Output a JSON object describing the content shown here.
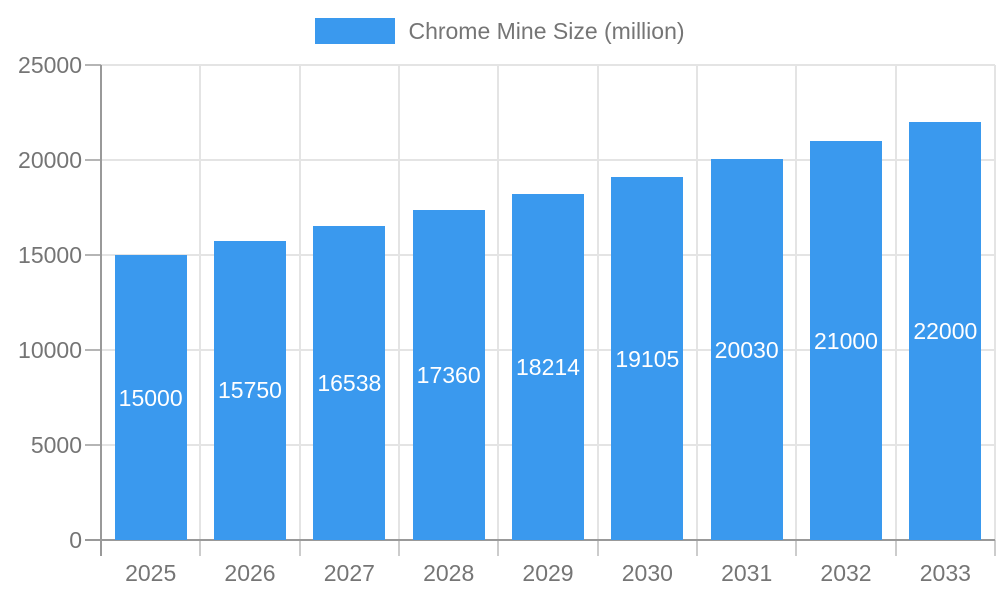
{
  "chart_data": {
    "type": "bar",
    "title": "Chrome Mine Size (million)",
    "legend": {
      "position": "top",
      "entries": [
        "Chrome Mine Size (million)"
      ]
    },
    "categories": [
      "2025",
      "2026",
      "2027",
      "2028",
      "2029",
      "2030",
      "2031",
      "2032",
      "2033"
    ],
    "values": [
      15000,
      15750,
      16538,
      17360,
      18214,
      19105,
      20030,
      21000,
      22000
    ],
    "value_labels": [
      "15000",
      "15750",
      "16538",
      "17360",
      "18214",
      "19105",
      "20030",
      "21000",
      "22000"
    ],
    "y_ticks": [
      "0",
      "5000",
      "10000",
      "15000",
      "20000",
      "25000"
    ],
    "y_tick_values": [
      0,
      5000,
      10000,
      15000,
      20000,
      25000
    ],
    "ylim": [
      0,
      25000
    ],
    "xlabel": "",
    "ylabel": "",
    "grid": "on",
    "colors": {
      "bar": "#3A99EE",
      "value_label_text": "#ffffff",
      "axis_text": "#757575",
      "axis_line": "#999999",
      "y_tick_line": "#b5b5b5",
      "x_tick_line": "#cccccc",
      "gridline": "#e4e4e4",
      "background": "#ffffff"
    }
  }
}
